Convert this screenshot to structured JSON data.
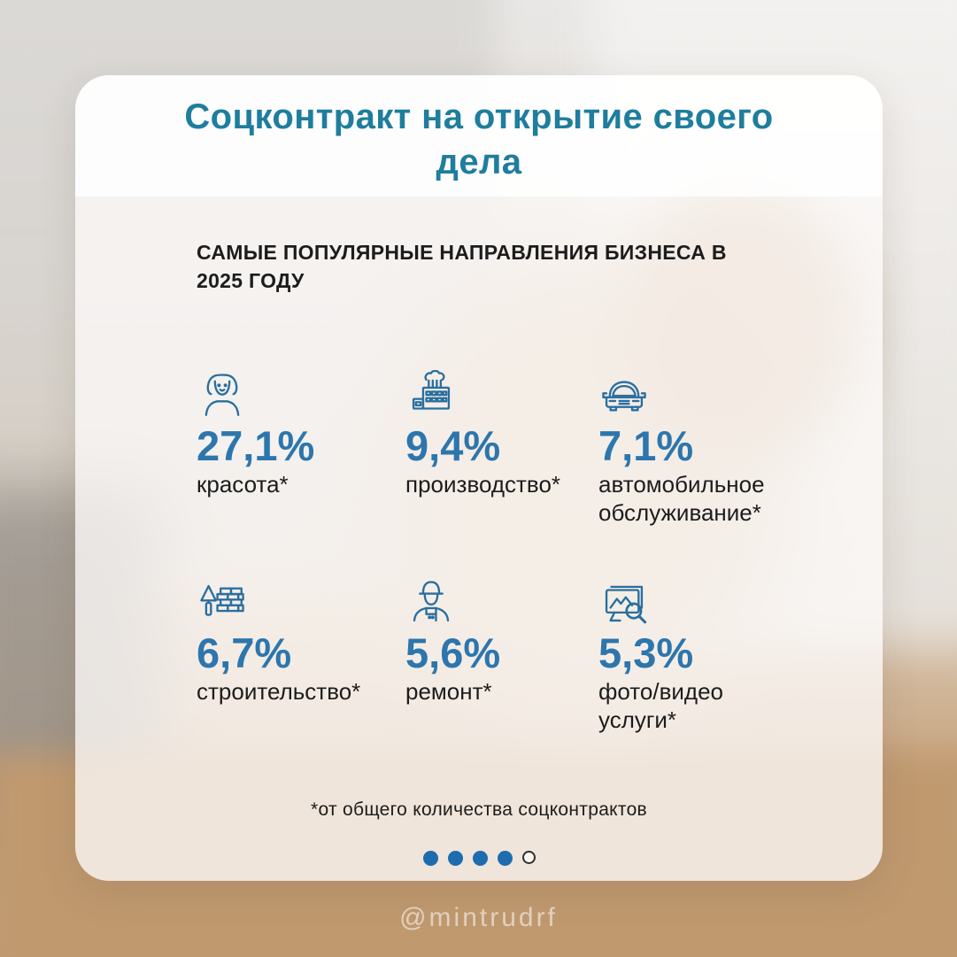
{
  "card": {
    "title": "Соцконтракт на открытие своего дела",
    "subtitle": "САМЫЕ ПОПУЛЯРНЫЕ НАПРАВЛЕНИЯ БИЗНЕСА В 2025 ГОДУ",
    "footnote": "*от общего количества соцконтрактов"
  },
  "stats": [
    {
      "value": "27,1%",
      "label": "красота*",
      "icon": "woman-icon"
    },
    {
      "value": "9,4%",
      "label": "производство*",
      "icon": "factory-icon"
    },
    {
      "value": "7,1%",
      "label": "автомобильное обслуживание*",
      "icon": "car-icon"
    },
    {
      "value": "6,7%",
      "label": "строительство*",
      "icon": "bricks-trowel-icon"
    },
    {
      "value": "5,6%",
      "label": "ремонт*",
      "icon": "worker-icon"
    },
    {
      "value": "5,3%",
      "label": "фото/видео услуги*",
      "icon": "photo-video-search-icon"
    }
  ],
  "pagination": {
    "dots_total": 5,
    "dots_filled": 4
  },
  "watermark": "@mintrudrf",
  "colors": {
    "title_color": "#1f7d9e",
    "value_color": "#2d76ad",
    "icon_color": "#2a6f9f",
    "dot_color": "#1e6cb0",
    "text_color": "#1c1c1c"
  },
  "chart_data": {
    "type": "table",
    "title": "Самые популярные направления бизнеса в 2025 году",
    "categories": [
      "красота",
      "производство",
      "автомобильное обслуживание",
      "строительство",
      "ремонт",
      "фото/видео услуги"
    ],
    "values": [
      27.1,
      9.4,
      7.1,
      6.7,
      5.6,
      5.3
    ],
    "unit": "%",
    "note": "*от общего количества соцконтрактов"
  }
}
